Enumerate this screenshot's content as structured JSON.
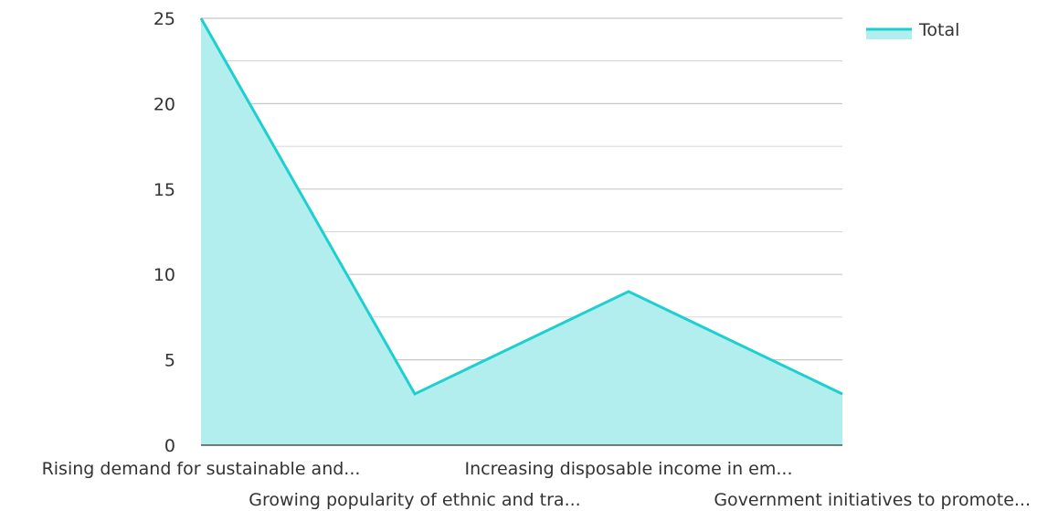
{
  "chart_data": {
    "type": "area",
    "categories": [
      "Rising demand for sustainable and...",
      "Growing popularity of ethnic and tra...",
      "Increasing disposable income in em...",
      "Government initiatives to promote..."
    ],
    "series": [
      {
        "name": "Total",
        "values": [
          25,
          3,
          9,
          3
        ]
      }
    ],
    "ylim": [
      0,
      25
    ],
    "yticks": [
      "0",
      "5",
      "10",
      "15",
      "20",
      "25"
    ],
    "grid": true,
    "legend": "top-right",
    "colors": {
      "line": "#1ecfd0",
      "fill": "#b2eeee",
      "grid": "#c8c8c8",
      "axis": "#333333"
    }
  }
}
